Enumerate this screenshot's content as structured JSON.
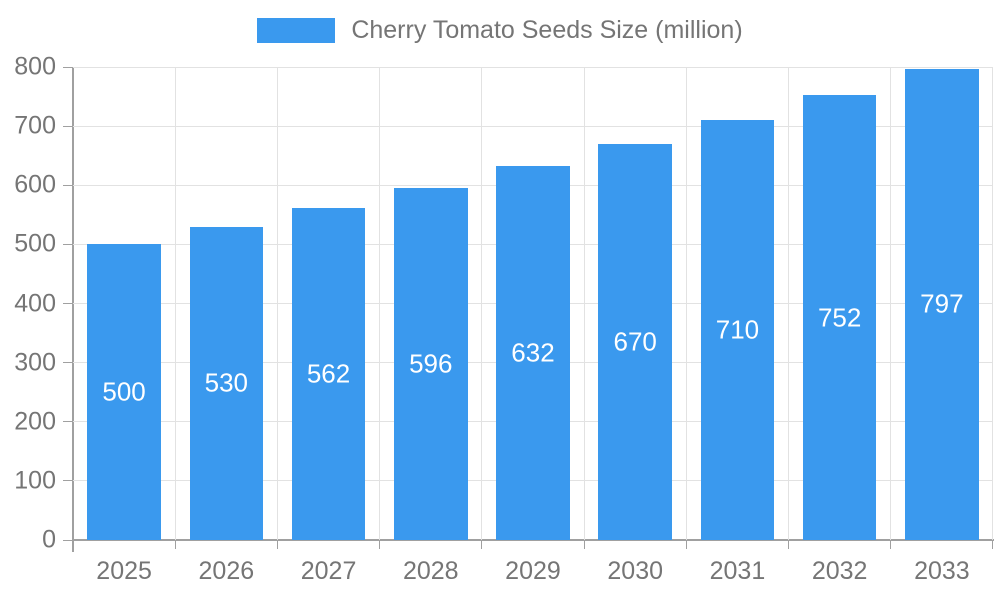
{
  "chart_data": {
    "type": "bar",
    "title": "Cherry Tomato Seeds Size (million)",
    "categories": [
      "2025",
      "2026",
      "2027",
      "2028",
      "2029",
      "2030",
      "2031",
      "2032",
      "2033"
    ],
    "values": [
      500,
      530,
      562,
      596,
      632,
      670,
      710,
      752,
      797
    ],
    "xlabel": "",
    "ylabel": "",
    "ylim": [
      0,
      800
    ],
    "ytick_step": 100,
    "grid": true,
    "legend_position": "top-center",
    "value_labels": "inside-center",
    "colors": {
      "bar": "#3a99ee",
      "grid": "#e2e2e2",
      "axis": "#a0a0a0",
      "tick_label": "#757575",
      "value_label": "#ffffff",
      "background": "#ffffff"
    }
  }
}
